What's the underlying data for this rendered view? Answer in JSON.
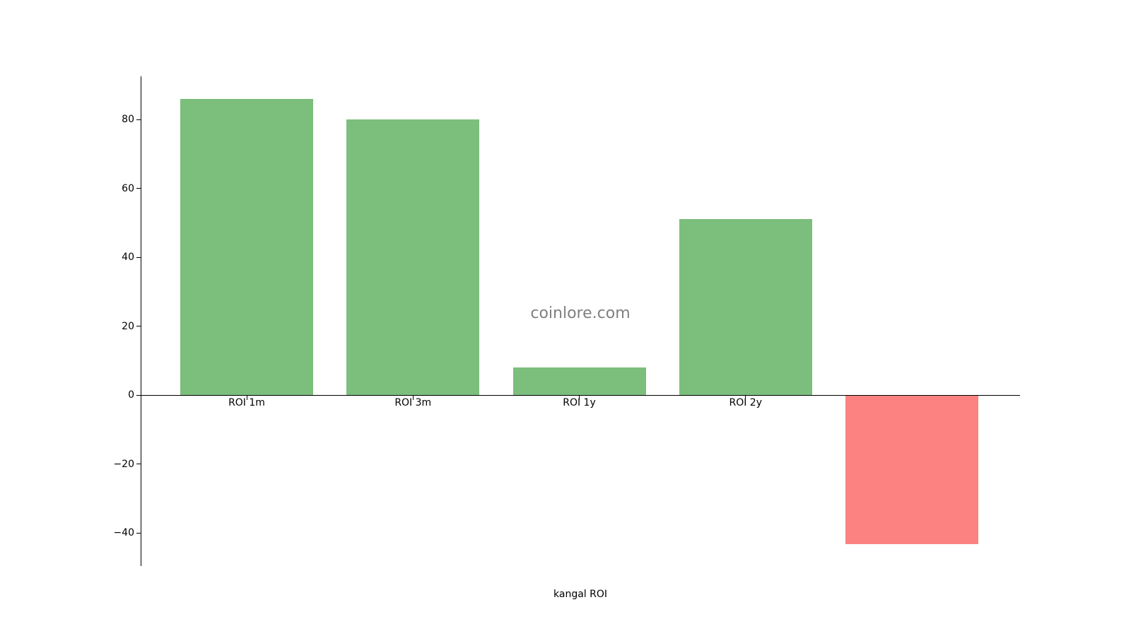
{
  "watermark": {
    "text": "coinlore.com",
    "color": "#808080"
  },
  "chart_data": {
    "type": "bar",
    "title": "",
    "xlabel": "kangal ROI",
    "ylabel": "",
    "categories": [
      "ROI 1m",
      "ROI 3m",
      "ROI 1y",
      "ROI 2y",
      ""
    ],
    "values": [
      86,
      80,
      8,
      51,
      -43
    ],
    "bar_colors": [
      "#7cbe7c",
      "#7cbe7c",
      "#7cbe7c",
      "#7cbe7c",
      "#fc8181"
    ],
    "positive_color": "#7cbe7c",
    "negative_color": "#fc8181",
    "yticks": [
      80,
      60,
      40,
      20,
      0,
      -20,
      -40
    ],
    "ytick_labels": [
      "80",
      "60",
      "40",
      "20",
      "0",
      "−20",
      "−40"
    ],
    "ylim": [
      -49.5,
      92.5
    ],
    "grid": false,
    "legend": false,
    "axis_color": "#000000",
    "note": "fifth bar tick label is hidden behind the negative bar"
  }
}
